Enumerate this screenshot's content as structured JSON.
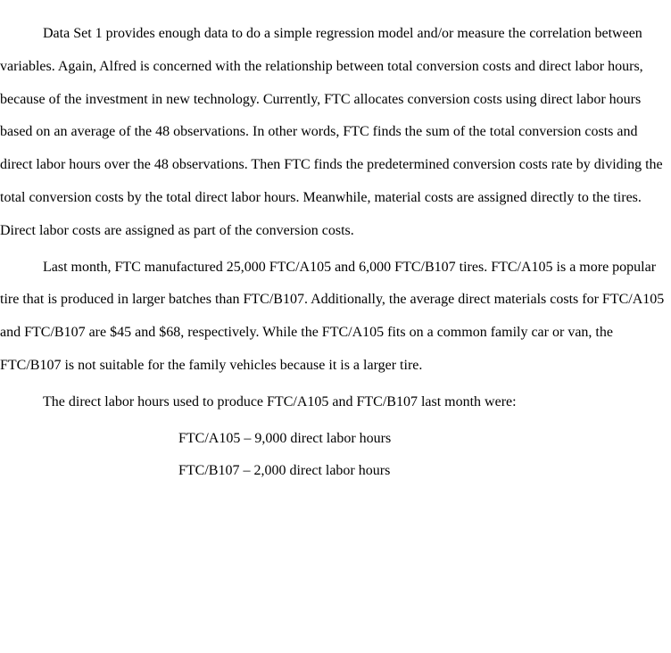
{
  "document": {
    "font_family": "Times New Roman",
    "font_size": 16,
    "text_color": "#000000",
    "background_color": "#ffffff",
    "line_height": 2.3,
    "paragraphs": [
      {
        "text": "Data Set 1 provides enough data to do a simple regression model and/or measure the correlation between variables.  Again, Alfred is concerned with the relationship between total conversion costs and direct labor hours, because of the investment in new technology.  Currently, FTC allocates conversion costs using direct labor hours based on an average of the 48 observations.  In other words, FTC finds the sum of the total conversion costs and direct labor hours over the 48 observations.  Then FTC finds the predetermined conversion costs rate by dividing the total conversion costs by the total direct labor hours.  Meanwhile, material costs are assigned directly to the tires.  Direct labor costs are assigned as part of the conversion costs.",
        "indent": true
      },
      {
        "text": "Last month, FTC manufactured 25,000 FTC/A105 and 6,000 FTC/B107 tires.  FTC/A105 is a more popular tire that is produced in larger batches than FTC/B107.  Additionally, the average direct materials costs for FTC/A105 and FTC/B107 are $45 and $68, respectively.  While the FTC/A105 fits on a common family car or van, the FTC/B107 is not suitable for the family vehicles because it is a larger tire.",
        "indent": true
      },
      {
        "text": "The direct labor hours used to produce FTC/A105 and FTC/B107 last month were:",
        "indent": true
      }
    ],
    "data_lines": [
      "FTC/A105 – 9,000 direct labor hours",
      "FTC/B107 – 2,000 direct labor hours"
    ]
  }
}
